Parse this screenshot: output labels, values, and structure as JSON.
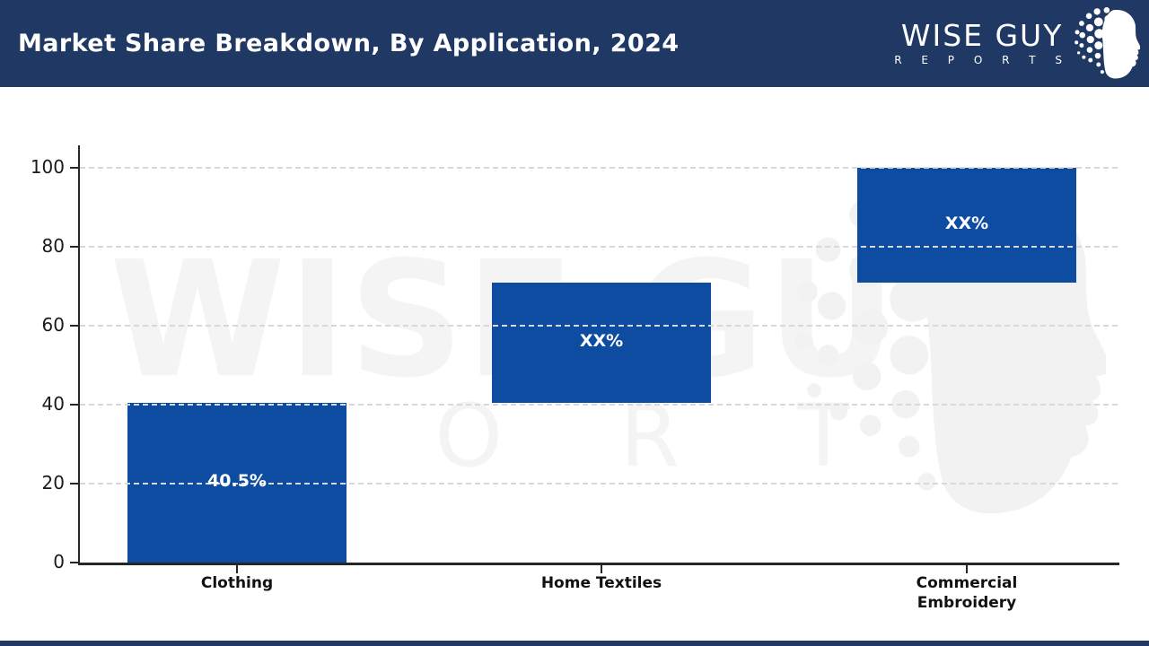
{
  "header": {
    "title": "Market Share Breakdown, By Application, 2024",
    "background": "#1f3864",
    "brand": {
      "line1": "WISE GUY",
      "line2": "R E P O R T S"
    }
  },
  "footer": {
    "background": "#1f3864"
  },
  "watermark": {
    "line1": "WISE GUY",
    "line2": "P O R T S"
  },
  "chart_data": {
    "type": "bar",
    "subtype": "waterfall",
    "title": "Market Share Breakdown, By Application, 2024",
    "categories": [
      "Clothing",
      "Home Textiles",
      "Commercial Embroidery"
    ],
    "bars": [
      {
        "category": "Clothing",
        "start": 0,
        "end": 40.5,
        "label": "40.5%"
      },
      {
        "category": "Home Textiles",
        "start": 40.5,
        "end": 71,
        "label": "XX%"
      },
      {
        "category": "Commercial Embroidery",
        "start": 71,
        "end": 100,
        "label": "XX%"
      }
    ],
    "yticks": [
      0,
      20,
      40,
      60,
      80,
      100
    ],
    "ylim": [
      0,
      105
    ],
    "xlabel": "",
    "ylabel": "",
    "grid": "horizontal-dashed",
    "legend": "none",
    "bar_color": "#0d4ca1",
    "bar_label_color": "#ffffff",
    "gridline_color": "#d8d8d8",
    "axis_color": "#262626"
  }
}
